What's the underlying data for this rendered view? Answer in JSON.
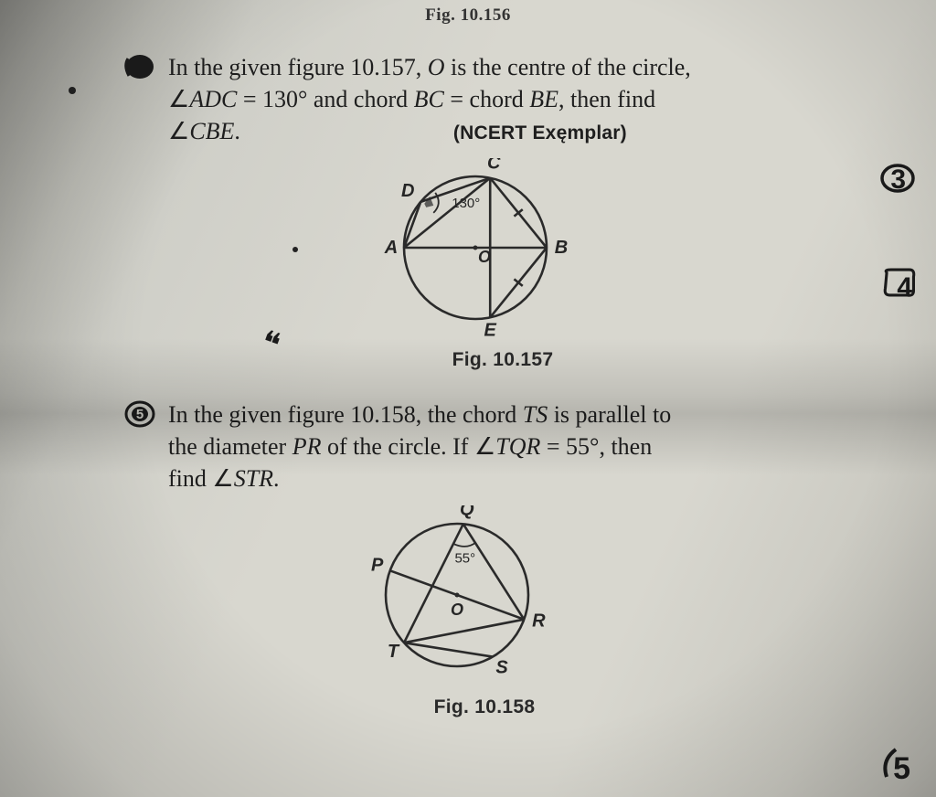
{
  "header": {
    "fig": "Fig. 10.156"
  },
  "problem4": {
    "bullet": "4",
    "line1_a": "In the given figure 10.157, ",
    "line1_O": "O",
    "line1_b": " is the centre of the circle,",
    "line2_a": "∠",
    "line2_ADC": "ADC",
    "line2_eq": " = 130° and chord ",
    "line2_BC": "BC",
    "line2_b": " = chord ",
    "line2_BE": "BE",
    "line2_c": ", then find",
    "line3_a": "∠",
    "line3_CBE": "CBE",
    "line3_dot": ".",
    "tag": "(NCERT Exęmplar)",
    "figure": {
      "caption": "Fig. 10.157",
      "radius": 78,
      "stroke_width": 2.6,
      "center_label": "O",
      "A": {
        "label": "A",
        "deg": 180
      },
      "B": {
        "label": "B",
        "deg": 0
      },
      "C": {
        "label": "C",
        "deg": 78
      },
      "D": {
        "label": "D",
        "deg": 140
      },
      "E": {
        "label": "E",
        "deg": 282
      },
      "angle_label": "130°"
    }
  },
  "problem5": {
    "bullet": "5",
    "line1_a": "In the given figure 10.158, the chord ",
    "line1_TS": "TS",
    "line1_b": " is parallel to",
    "line2_a": "the diameter ",
    "line2_PR": "PR",
    "line2_b": " of the circle. If ∠",
    "line2_TQR": "TQR",
    "line2_c": " = 55°, then",
    "line3_a": "find ∠",
    "line3_STR": "STR",
    "line3_dot": ".",
    "figure": {
      "caption": "Fig. 10.158",
      "radius": 78,
      "stroke_width": 2.6,
      "center_label": "O",
      "P": {
        "label": "P",
        "deg": 160
      },
      "R": {
        "label": "R",
        "deg": 340
      },
      "Q": {
        "label": "Q",
        "deg": 85
      },
      "T": {
        "label": "T",
        "deg": 222
      },
      "S": {
        "label": "S",
        "deg": 300
      },
      "angle_label": "55°"
    }
  },
  "margin": {
    "b3": "3",
    "b4": "4",
    "b5": "5"
  },
  "colors": {
    "text": "#1e1e1e",
    "stroke": "#2a2a2a",
    "accent": "#1a1a1a"
  }
}
